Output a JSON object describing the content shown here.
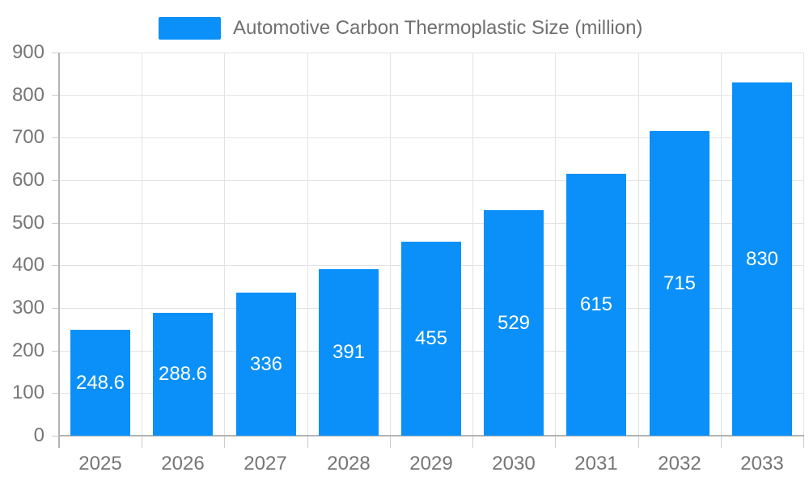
{
  "legend": {
    "label": "Automotive Carbon Thermoplastic Size (million)"
  },
  "colors": {
    "bar": "#0a90f8",
    "title_text": "#6f6f6f",
    "axis_label": "#757575",
    "grid": "#e3e3e3",
    "tick": "#cccccc",
    "axis_line": "#b3b3b3",
    "value_label": "#ffffff",
    "background": "#ffffff"
  },
  "chart_data": {
    "type": "bar",
    "title": "Automotive Carbon Thermoplastic Size (million)",
    "categories": [
      "2025",
      "2026",
      "2027",
      "2028",
      "2029",
      "2030",
      "2031",
      "2032",
      "2033"
    ],
    "series": [
      {
        "name": "Automotive Carbon Thermoplastic Size (million)",
        "values": [
          248.6,
          288.6,
          336,
          391,
          455,
          529,
          615,
          715,
          830
        ]
      }
    ],
    "value_labels": [
      "248.6",
      "288.6",
      "336",
      "391",
      "455",
      "529",
      "615",
      "715",
      "830"
    ],
    "xlabel": "",
    "ylabel": "",
    "ylim": [
      0,
      900
    ],
    "yticks": [
      0,
      100,
      200,
      300,
      400,
      500,
      600,
      700,
      800,
      900
    ],
    "grid": true,
    "legend_position": "top"
  }
}
